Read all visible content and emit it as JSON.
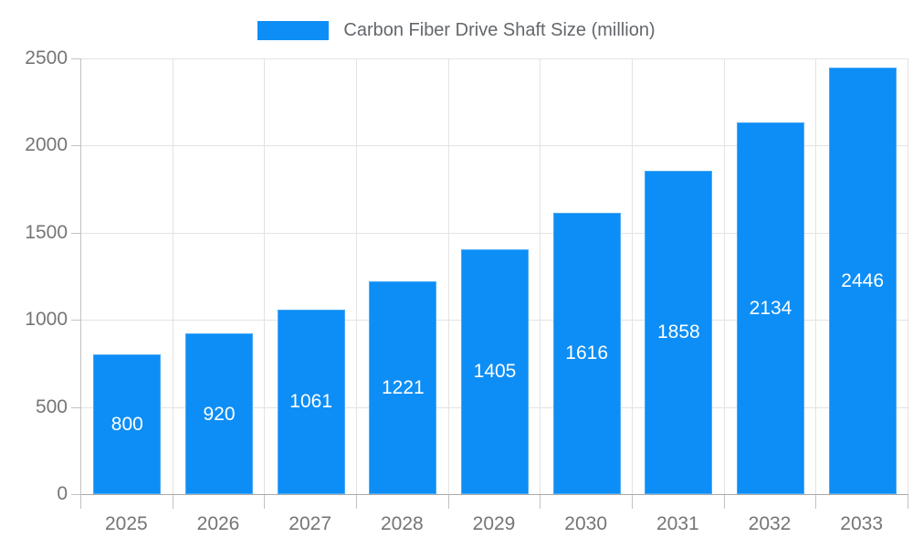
{
  "legend": {
    "label": "Carbon Fiber Drive Shaft Size (million)"
  },
  "chart_data": {
    "type": "bar",
    "title": "Carbon Fiber Drive Shaft Size (million)",
    "series_name": "Carbon Fiber Drive Shaft Size (million)",
    "categories": [
      "2025",
      "2026",
      "2027",
      "2028",
      "2029",
      "2030",
      "2031",
      "2032",
      "2033"
    ],
    "values": [
      800,
      920,
      1061,
      1221,
      1405,
      1616,
      1858,
      2134,
      2446
    ],
    "value_labels": [
      "800",
      "920",
      "1061",
      "1221",
      "1405",
      "1616",
      "1858",
      "2134",
      "2446"
    ],
    "xlabel": "",
    "ylabel": "",
    "ylim": [
      0,
      2500
    ],
    "yticks": [
      0,
      500,
      1000,
      1500,
      2000,
      2500
    ],
    "grid": true,
    "legend_position": "top",
    "bar_color": "#0d8ef6",
    "bar_label_color": "#ffffff",
    "axis_text_color": "#757575",
    "legend_text_color": "#63676b",
    "gridline_color": "#e3e3e3"
  }
}
